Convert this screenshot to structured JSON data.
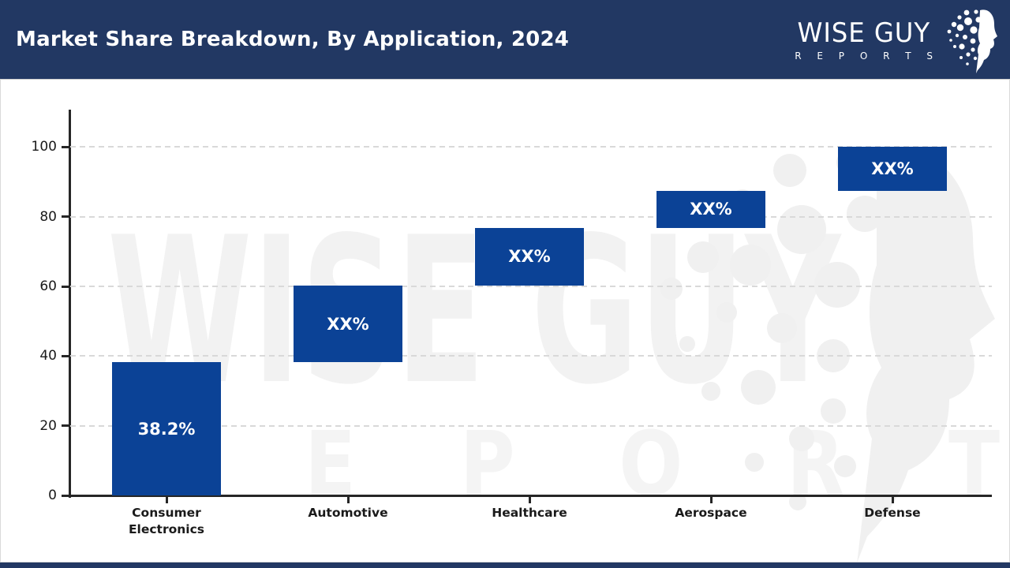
{
  "header": {
    "title": "Market Share Breakdown, By Application, 2024",
    "logo": {
      "line1": "WISE GUY",
      "line2": "R E P O R T S"
    }
  },
  "watermark": {
    "line1": "WISE GUY",
    "line2": "R E P O R T S"
  },
  "chart_data": {
    "type": "bar",
    "subtype": "waterfall",
    "title": "Market Share Breakdown, By Application, 2024",
    "categories": [
      "Consumer\nElectronics",
      "Automotive",
      "Healthcare",
      "Aerospace",
      "Defense"
    ],
    "segments": [
      {
        "category": "Consumer Electronics",
        "label": "38.2%",
        "start": 0,
        "end": 38.2
      },
      {
        "category": "Automotive",
        "label": "XX%",
        "start": 38.2,
        "end": 60.2
      },
      {
        "category": "Healthcare",
        "label": "XX%",
        "start": 60.3,
        "end": 76.8
      },
      {
        "category": "Aerospace",
        "label": "XX%",
        "start": 76.8,
        "end": 87.5
      },
      {
        "category": "Defense",
        "label": "XX%",
        "start": 87.5,
        "end": 100
      }
    ],
    "xlabel": "",
    "ylabel": "",
    "yticks": [
      0,
      20,
      40,
      60,
      80,
      100
    ],
    "ylim": [
      0,
      108
    ],
    "grid": "horizontal-dashed",
    "legend": "none",
    "bar_color": "#0b4296",
    "bar_label_color": "#ffffff",
    "axis_color": "#262626",
    "gridline_color": "#d9d9d9",
    "tick_label_color": "#1a1a1a"
  },
  "colors": {
    "header_bg": "#223863",
    "footer_bg": "#223863",
    "card_bg": "#ffffff",
    "card_border": "#d9d9d9",
    "watermark": "#f2f2f2"
  }
}
